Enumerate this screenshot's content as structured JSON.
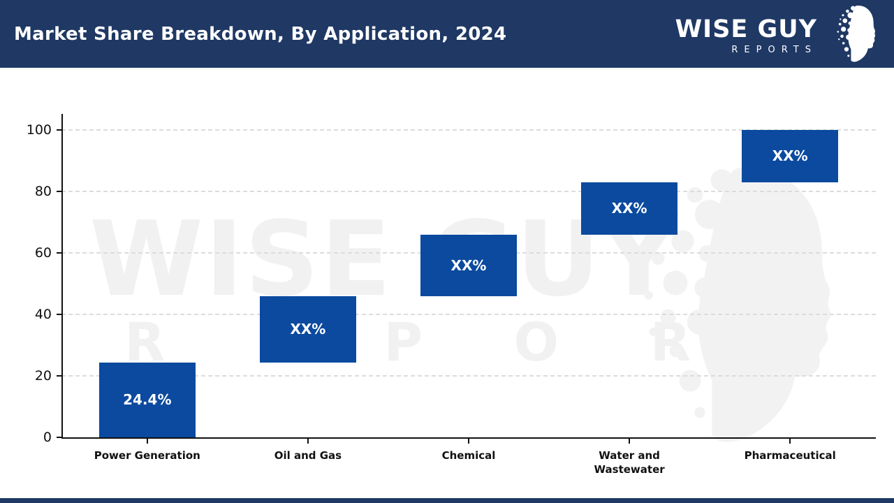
{
  "header": {
    "title": "Market Share Breakdown, By Application, 2024",
    "logo": {
      "line1": "WISE GUY",
      "line2": "REPORTS"
    }
  },
  "watermark": {
    "line1": "WISE GUY",
    "line2": "R E P O R T S"
  },
  "colors": {
    "header_bg": "#1f3864",
    "bar_fill": "#0b4a9f",
    "gridline": "#dcdcdc",
    "watermark": "#f1f1f1",
    "bar_label_text": "#ffffff",
    "axis_text": "#111111"
  },
  "chart_data": {
    "type": "bar",
    "subtype": "waterfall",
    "title": "Market Share Breakdown, By Application, 2024",
    "categories": [
      "Power Generation",
      "Oil and Gas",
      "Chemical",
      "Water and\nWastewater",
      "Pharmaceutical"
    ],
    "segments": [
      {
        "category": "Power Generation",
        "start": 0,
        "end": 24.4,
        "label": "24.4%"
      },
      {
        "category": "Oil and Gas",
        "start": 24.4,
        "end": 46,
        "label": "XX%"
      },
      {
        "category": "Chemical",
        "start": 46,
        "end": 66,
        "label": "XX%"
      },
      {
        "category": "Water and Wastewater",
        "start": 66,
        "end": 83,
        "label": "XX%"
      },
      {
        "category": "Pharmaceutical",
        "start": 83,
        "end": 100,
        "label": "XX%"
      }
    ],
    "yticks": [
      0,
      20,
      40,
      60,
      80,
      100
    ],
    "ylim": [
      0,
      105
    ],
    "xlabel": "",
    "ylabel": "",
    "grid": "horizontal-dashed",
    "legend": "none"
  }
}
